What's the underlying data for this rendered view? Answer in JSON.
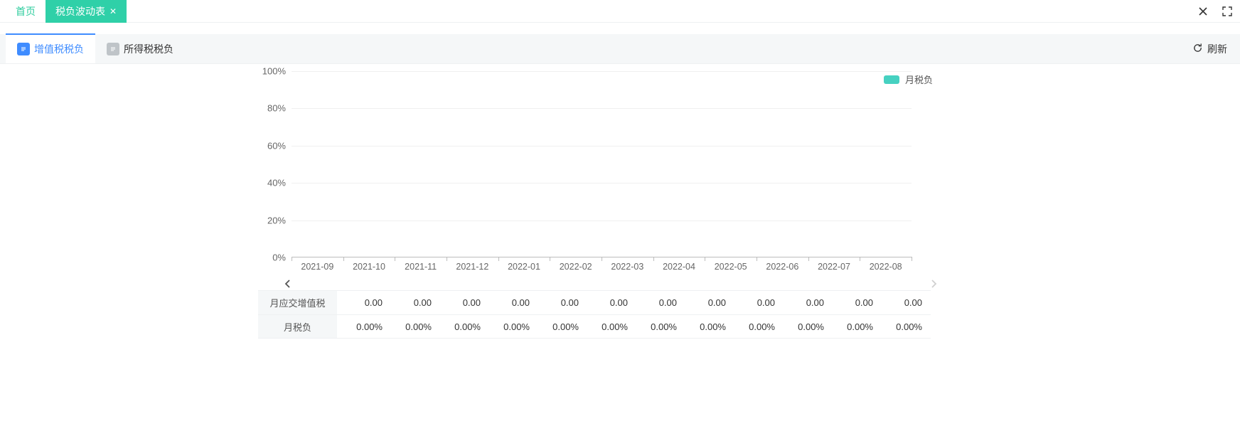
{
  "top_tabs": {
    "home": "首页",
    "active": "税负波动表"
  },
  "sub_tabs": {
    "vat": "增值税税负",
    "income": "所得税税负"
  },
  "refresh_label": "刷新",
  "chart": {
    "type": "bar",
    "legend_label": "月税负",
    "legend_color": "#46d1c1",
    "background_color": "#ffffff",
    "grid_color": "#f0f0f0",
    "axis_color": "#bdbdbd",
    "ylim": [
      0,
      100
    ],
    "ytick_step": 20,
    "yticks": [
      "0%",
      "20%",
      "40%",
      "60%",
      "80%",
      "100%"
    ],
    "categories": [
      "2021-09",
      "2021-10",
      "2021-11",
      "2021-12",
      "2022-01",
      "2022-02",
      "2022-03",
      "2022-04",
      "2022-05",
      "2022-06",
      "2022-07",
      "2022-08"
    ],
    "values": [
      0,
      0,
      0,
      0,
      0,
      0,
      0,
      0,
      0,
      0,
      0,
      0
    ]
  },
  "table": {
    "row_labels": [
      "月应交增值税",
      "月税负"
    ],
    "rows": [
      [
        "0.00",
        "0.00",
        "0.00",
        "0.00",
        "0.00",
        "0.00",
        "0.00",
        "0.00",
        "0.00",
        "0.00",
        "0.00",
        "0.00"
      ],
      [
        "0.00%",
        "0.00%",
        "0.00%",
        "0.00%",
        "0.00%",
        "0.00%",
        "0.00%",
        "0.00%",
        "0.00%",
        "0.00%",
        "0.00%",
        "0.00%"
      ]
    ]
  },
  "colors": {
    "brand_green": "#2fd0a8",
    "link_blue": "#3f8cff"
  }
}
